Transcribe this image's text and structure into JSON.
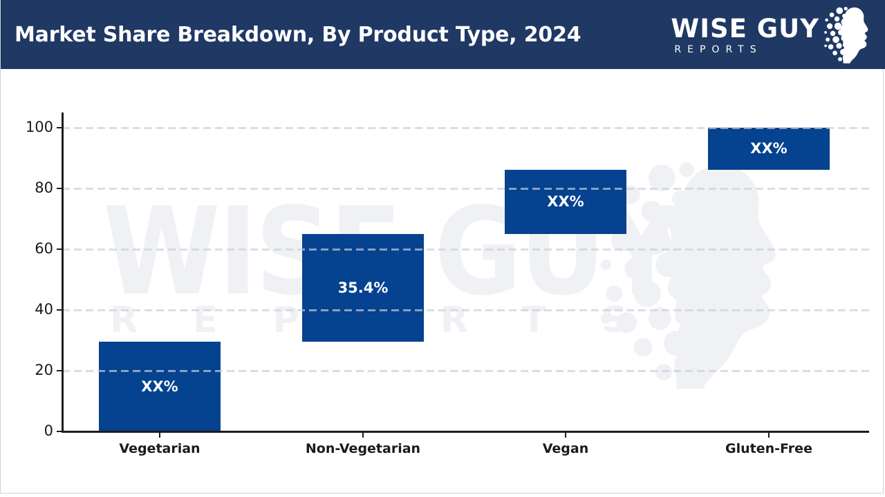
{
  "header": {
    "title": "Market Share Breakdown, By Product Type, 2024",
    "logo": {
      "line1": "WISE GUY",
      "line2": "REPORTS"
    }
  },
  "watermark": {
    "line1": "WISE GUY",
    "line2": "REPORTS"
  },
  "colors": {
    "header_bg": "#1f3864",
    "header_text": "#ffffff",
    "bar_fill": "#05428f",
    "bar_label": "#ffffff",
    "axis": "#1c1c1c",
    "tick_text": "#1a1a1a",
    "watermark": "#f0f1f4"
  },
  "chart_data": {
    "type": "bar",
    "subtype": "waterfall",
    "title": "Market Share Breakdown, By Product Type, 2024",
    "categories": [
      "Vegetarian",
      "Non-Vegetarian",
      "Vegan",
      "Gluten-Free"
    ],
    "bars": [
      {
        "category": "Vegetarian",
        "start": 0,
        "end": 29.5,
        "value_label": "XX%"
      },
      {
        "category": "Non-Vegetarian",
        "start": 29.5,
        "end": 64.9,
        "value_label": "35.4%"
      },
      {
        "category": "Vegan",
        "start": 64.9,
        "end": 86.1,
        "value_label": "XX%"
      },
      {
        "category": "Gluten-Free",
        "start": 86.1,
        "end": 100,
        "value_label": "XX%"
      }
    ],
    "yticks": [
      0,
      20,
      40,
      60,
      80,
      100
    ],
    "ylim": [
      0,
      105
    ],
    "xlabel": "",
    "ylabel": "",
    "grid": "dashed-horizontal",
    "legend": "none"
  }
}
